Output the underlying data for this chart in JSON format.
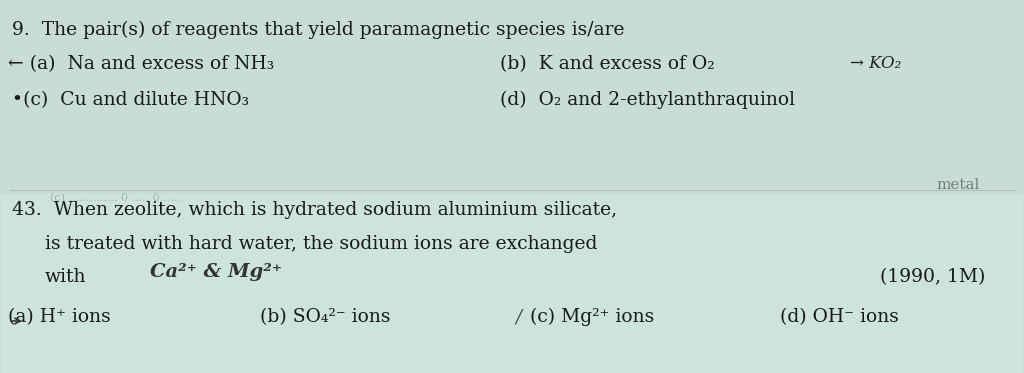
{
  "bg_color": "#c8e0d8",
  "bg_color2": "#d4e8e0",
  "section1": {
    "question_num": "9.",
    "question_text": "The pair(s) of reagents that yield paramagnetic species is/are",
    "options": [
      {
        "label": "(a)",
        "text": "Na and excess of NH₃",
        "prefix": "←",
        "strikethrough": false
      },
      {
        "label": "(b)",
        "text": "K and excess of O₂",
        "annotation": "→ KO₂",
        "strikethrough": false
      },
      {
        "label": "(c)",
        "text": "Cu and dilute HNO₃",
        "prefix": "•",
        "strikethrough": false
      },
      {
        "label": "(d)",
        "text": "O₂ and 2-ethylanthraquinol",
        "strikethrough": false
      }
    ],
    "handwritten": "←(a)  → KO₂"
  },
  "divider_text": "metal",
  "section2": {
    "question_num": "43.",
    "question_text_line1": "When zeolite, which is hydrated sodium aluminium silicate,",
    "question_text_line2": "is treated with hard water, the sodium ions are exchanged",
    "question_text_line3": "with",
    "year_mark": "(1990, 1M)",
    "handwritten_text": "Ca²⁺ & Mg²⁺",
    "options": [
      {
        "label": "(a)",
        "text": "H⁺ ions"
      },
      {
        "label": "(b)",
        "text": "SO₄²⁻ ions"
      },
      {
        "label": "(c)",
        "text": "Mg²⁺ ions",
        "selected": true
      },
      {
        "label": "(d)",
        "text": "OH⁻ ions"
      }
    ]
  },
  "font_size_question": 15,
  "font_size_option": 14,
  "font_size_large": 16,
  "text_color": "#1a1a1a"
}
